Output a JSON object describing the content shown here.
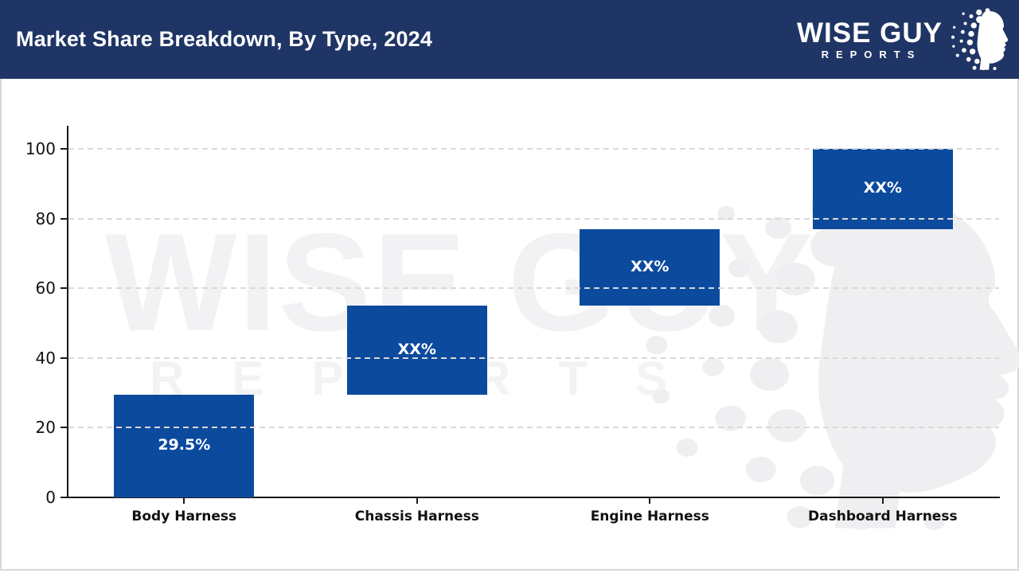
{
  "header": {
    "title": "Market Share Breakdown, By Type, 2024",
    "brand": {
      "line1": "WISE GUY",
      "line2": "REPORTS"
    }
  },
  "watermark": {
    "line1": "WISE GUY",
    "line2": "REPORTS"
  },
  "chart_data": {
    "type": "bar",
    "subtype": "waterfall-floating-bars",
    "title": "Market Share Breakdown, By Type, 2024",
    "categories": [
      "Body Harness",
      "Chassis Harness",
      "Engine Harness",
      "Dashboard Harness"
    ],
    "series": [
      {
        "name": "Market Share (%)",
        "segments": [
          {
            "category": "Body Harness",
            "start": 0,
            "end": 29.5,
            "label": "29.5%"
          },
          {
            "category": "Chassis Harness",
            "start": 29.5,
            "end": 55,
            "label": "XX%"
          },
          {
            "category": "Engine Harness",
            "start": 55,
            "end": 77,
            "label": "XX%"
          },
          {
            "category": "Dashboard Harness",
            "start": 77,
            "end": 100,
            "label": "XX%"
          }
        ]
      }
    ],
    "xlabel": "",
    "ylabel": "",
    "ylim": [
      0,
      105
    ],
    "yticks": [
      0,
      20,
      40,
      60,
      80,
      100
    ],
    "grid": "horizontal-dashed",
    "legend": "none",
    "bar_color": "#0c4a9e",
    "bar_label_color": "#ffffff",
    "axis_color": "#1a1a1a",
    "gridline_color": "#d9d9d9"
  },
  "colors": {
    "header_bg": "#1f3565",
    "body_bg": "#ffffff",
    "frame_border": "#d8d8d8",
    "watermark": "#f2f2f4"
  }
}
